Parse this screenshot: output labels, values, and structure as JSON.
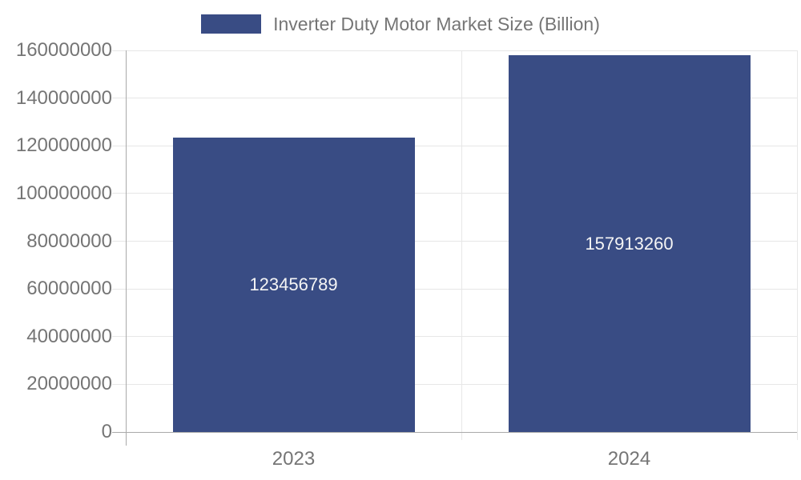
{
  "chart_data": {
    "type": "bar",
    "title": "Inverter Duty Motor Market Size (Billion)",
    "categories": [
      "2023",
      "2024"
    ],
    "series": [
      {
        "name": "Inverter Duty Motor Market Size (Billion)",
        "values": [
          123456789,
          157913260
        ]
      }
    ],
    "bar_value_labels": [
      "123456789",
      "157913260"
    ],
    "xlabel": "",
    "ylabel": "",
    "ylim": [
      0,
      160000000
    ],
    "ytick_step": 20000000,
    "yticks": [
      0,
      20000000,
      40000000,
      60000000,
      80000000,
      100000000,
      120000000,
      140000000,
      160000000
    ],
    "grid": true,
    "legend_position": "top-center",
    "colors": {
      "bar": "#394C84",
      "legend_text": "#757575",
      "tick_text": "#757575",
      "bar_label_text": "#f5f5f5",
      "axis_line": "#aaaaaa",
      "gridline": "#e7e7e7",
      "background": "#ffffff"
    }
  }
}
